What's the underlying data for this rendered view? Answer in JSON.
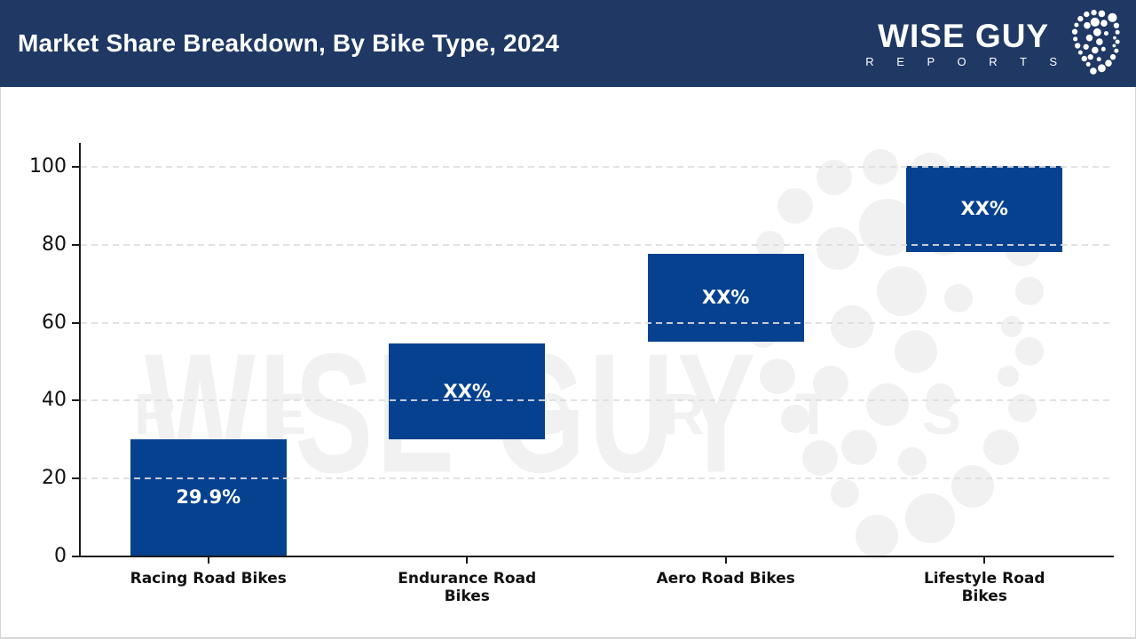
{
  "header": {
    "title": "Market Share Breakdown, By Bike Type, 2024",
    "brand": {
      "line1": "WISE GUY",
      "line2": "R E P O R T S"
    }
  },
  "watermark": {
    "line1": "WISE GUY",
    "line2": "R E P O R T S"
  },
  "chart_data": {
    "type": "bar",
    "subtype": "waterfall",
    "title": "Market Share Breakdown, By Bike Type, 2024",
    "xlabel": "",
    "ylabel": "",
    "ylim": [
      0,
      100
    ],
    "y_ticks": [
      0,
      20,
      40,
      60,
      80,
      100
    ],
    "grid": "horizontal dashed",
    "legend": "none",
    "categories": [
      "Racing Road Bikes",
      "Endurance Road\nBikes",
      "Aero Road Bikes",
      "Lifestyle Road\nBikes"
    ],
    "segments": [
      {
        "category": "Racing Road Bikes",
        "start": 0,
        "end": 29.9,
        "label": "29.9%"
      },
      {
        "category": "Endurance Road Bikes",
        "start": 29.9,
        "end": 54.5,
        "label": "XX%"
      },
      {
        "category": "Aero Road Bikes",
        "start": 55,
        "end": 77.5,
        "label": "XX%"
      },
      {
        "category": "Lifestyle Road Bikes",
        "start": 78,
        "end": 100,
        "label": "XX%"
      }
    ]
  },
  "colors": {
    "header_bg": "#1f3864",
    "bar_fill": "#05418f",
    "bar_label": "#ffffff",
    "axis": "#1a1a1a",
    "grid": "#dedede",
    "tick_label": "#111111",
    "watermark": "#f1f1f1",
    "border": "#d6d6d6"
  }
}
